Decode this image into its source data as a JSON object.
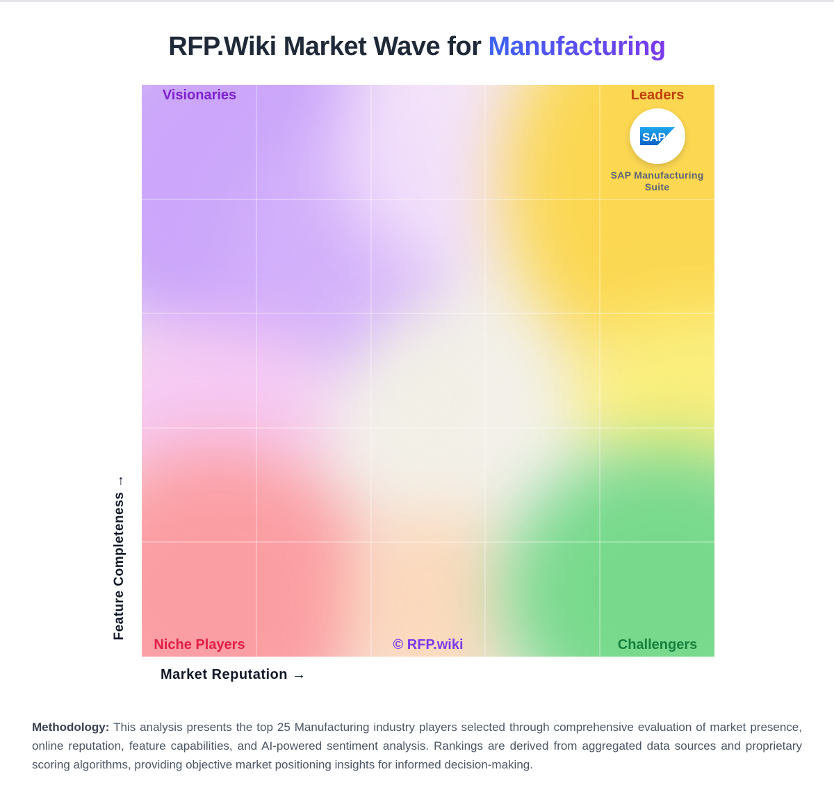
{
  "header": {
    "title_prefix": "RFP.Wiki Market Wave for ",
    "title_accent": "Manufacturing"
  },
  "colors": {
    "visionaries": "#7e22ce",
    "leaders": "#c2410c",
    "niche": "#e11d48",
    "challengers": "#15803d",
    "watermark": "#7c3aed",
    "accent_start": "#3b63f6",
    "accent_end": "#7c3aed"
  },
  "chart_data": {
    "type": "scatter",
    "title": "RFP.Wiki Market Wave for Manufacturing",
    "xlabel": "Market Reputation →",
    "ylabel": "Feature Completeness →",
    "grid": true,
    "quadrants": {
      "top_left": "Visionaries",
      "top_right": "Leaders",
      "bottom_left": "Niche Players",
      "bottom_right": "Challengers"
    },
    "watermark": "© RFP.wiki",
    "points": [
      {
        "name_line1": "SAP Manufacturing",
        "name_line2": "Suite",
        "logo": "SAP",
        "x": 0.9,
        "y": 0.91
      }
    ]
  },
  "methodology": {
    "label": "Methodology:",
    "text": "This analysis presents the top 25 Manufacturing industry players selected through comprehensive evaluation of market presence, online reputation, feature capabilities, and AI-powered sentiment analysis. Rankings are derived from aggregated data sources and proprietary scoring algorithms, providing objective market positioning insights for informed decision-making."
  }
}
